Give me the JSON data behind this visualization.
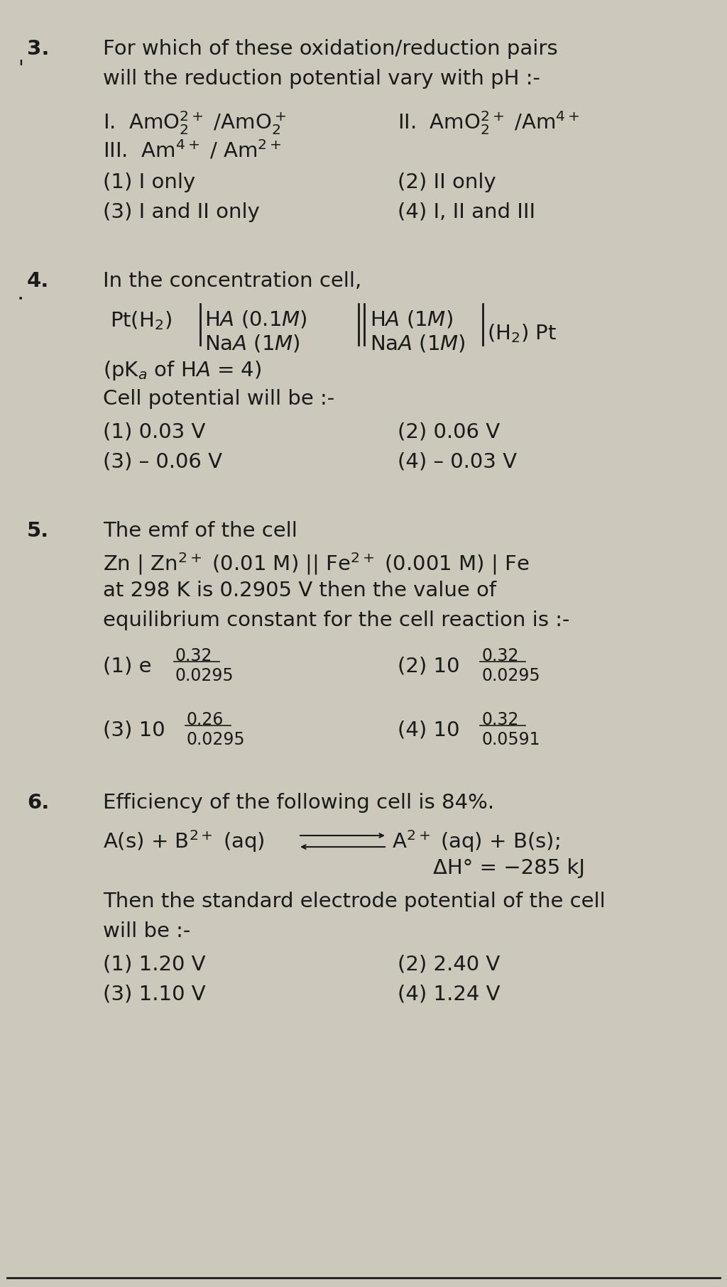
{
  "bg_color": "#ccc8bc",
  "text_color": "#1a1a1a",
  "q3_num": "3.",
  "q3_text1": "For which of these oxidation/reduction pairs",
  "q3_text2": "will the reduction potential vary with pH :-",
  "q4_num": "4.",
  "q4_text1": "In the concentration cell,",
  "q4_pka": "(pK",
  "q4_pka2": " of H",
  "q4_pka3": " = 4)",
  "q4_text2": "Cell potential will be :-",
  "q4_opt1": "(1) 0.03 V",
  "q4_opt2": "(2) 0.06 V",
  "q4_opt3": "(3) – 0.06 V",
  "q4_opt4": "(4) – 0.03 V",
  "q5_num": "5.",
  "q5_text1": "The emf of the cell",
  "q5_text3": "at 298 K is 0.2905 V then the value of",
  "q5_text4": "equilibrium constant for the cell reaction is :-",
  "q5_frac1_num": "0.32",
  "q5_frac1_den": "0.0295",
  "q5_frac2_num": "0.32",
  "q5_frac2_den": "0.0295",
  "q5_frac3_num": "0.26",
  "q5_frac3_den": "0.0295",
  "q5_frac4_num": "0.32",
  "q5_frac4_den": "0.0591",
  "q6_num": "6.",
  "q6_text1": "Efficiency of the following cell is 84%.",
  "q6_dH": "ΔH° = −285 kJ",
  "q6_text4": "Then the standard electrode potential of the cell",
  "q6_text5": "will be :-",
  "q6_opt1": "(1) 1.20 V",
  "q6_opt2": "(2) 2.40 V",
  "q6_opt3": "(3) 1.10 V",
  "q6_opt4": "(4) 1.24 V"
}
